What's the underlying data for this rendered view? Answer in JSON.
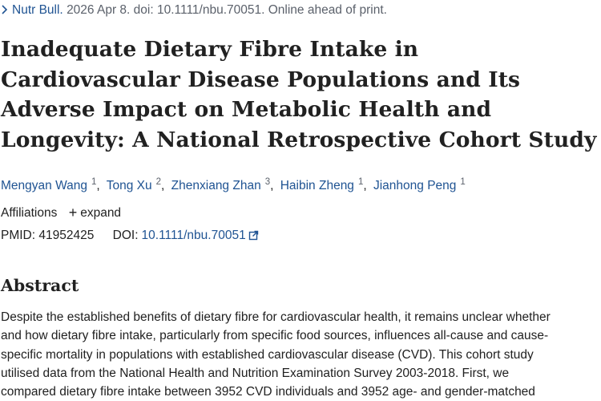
{
  "citation": {
    "chevron_icon": "chevron-right-icon",
    "journal": "Nutr Bull.",
    "details": "2026 Apr 8. doi: 10.1111/nbu.70051. Online ahead of print."
  },
  "article": {
    "title": "Inadequate Dietary Fibre Intake in Cardiovascular Disease Populations and Its Adverse Impact on Metabolic Health and Longevity: A National Retrospective Cohort Study",
    "authors": [
      {
        "name": "Mengyan Wang",
        "affiliation": "1"
      },
      {
        "name": "Tong Xu",
        "affiliation": "2"
      },
      {
        "name": "Zhenxiang Zhan",
        "affiliation": "3"
      },
      {
        "name": "Haibin Zheng",
        "affiliation": "1"
      },
      {
        "name": "Jianhong Peng",
        "affiliation": "1"
      }
    ],
    "separator": ",",
    "affiliations_label": "Affiliations",
    "expand_label": "expand",
    "expand_icon": "plus-icon",
    "pmid_label": "PMID:",
    "pmid_value": "41952425",
    "doi_label": "DOI:",
    "doi_value": "10.1111/nbu.70051",
    "external_link_icon": "external-link-icon"
  },
  "abstract": {
    "heading": "Abstract",
    "lines": [
      "Despite the established benefits of dietary fibre for cardiovascular health, it remains unclear whether",
      "and how dietary fibre intake, particularly from specific food sources, influences all-cause and cause-",
      "specific mortality in populations with established cardiovascular disease (CVD). This cohort study",
      "utilised data from the National Health and Nutrition Examination Survey 2003-2018. First, we",
      "compared dietary fibre intake between 3952 CVD individuals and 3952 age- and gender-matched"
    ]
  },
  "colors": {
    "link": "#205493",
    "text": "#212121",
    "muted": "#5b616b"
  }
}
